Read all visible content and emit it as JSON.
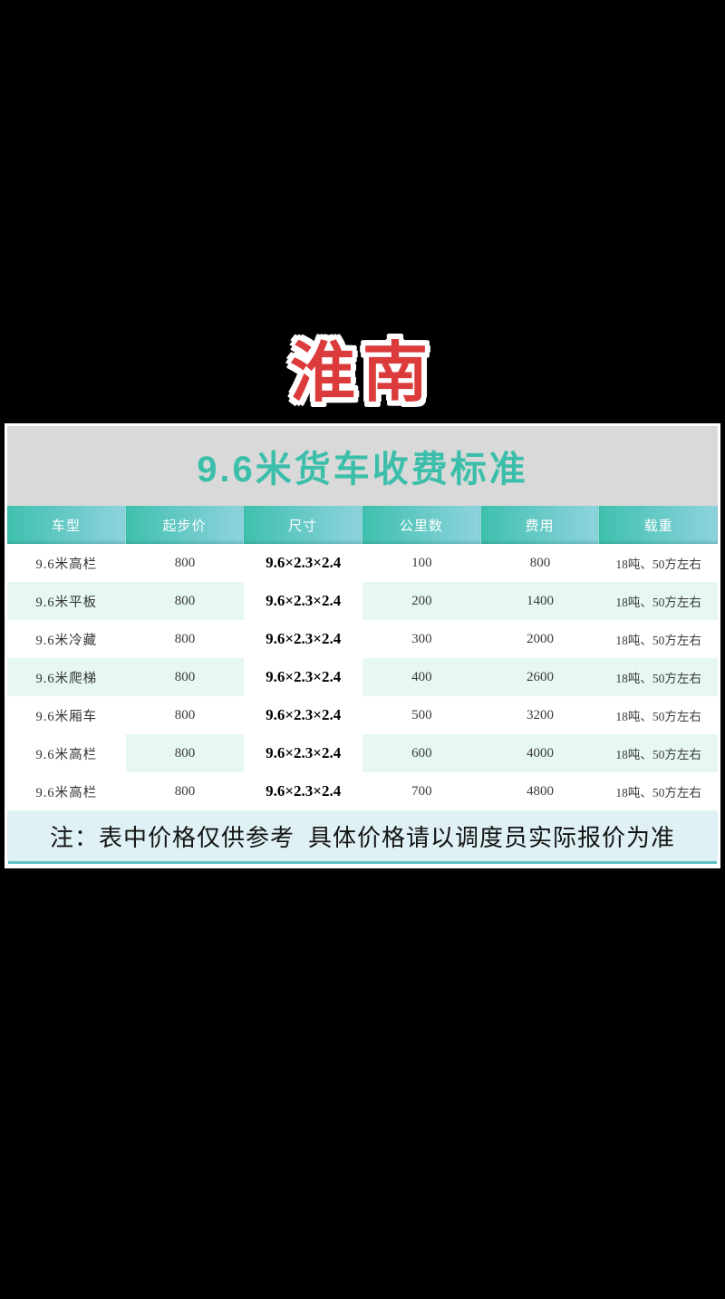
{
  "page_title": "淮南",
  "table": {
    "title": "9.6米货车收费标准",
    "columns": [
      "车型",
      "起步价",
      "尺寸",
      "公里数",
      "费用",
      "载重"
    ],
    "rows": [
      [
        "9.6米高栏",
        "800",
        "9.6×2.3×2.4",
        "100",
        "800",
        "18吨、50方左右"
      ],
      [
        "9.6米平板",
        "800",
        "9.6×2.3×2.4",
        "200",
        "1400",
        "18吨、50方左右"
      ],
      [
        "9.6米冷藏",
        "800",
        "9.6×2.3×2.4",
        "300",
        "2000",
        "18吨、50方左右"
      ],
      [
        "9.6米爬梯",
        "800",
        "9.6×2.3×2.4",
        "400",
        "2600",
        "18吨、50方左右"
      ],
      [
        "9.6米厢车",
        "800",
        "9.6×2.3×2.4",
        "500",
        "3200",
        "18吨、50方左右"
      ],
      [
        "9.6米高栏",
        "800",
        "9.6×2.3×2.4",
        "600",
        "4000",
        "18吨、50方左右"
      ],
      [
        "9.6米高栏",
        "800",
        "9.6×2.3×2.4",
        "700",
        "4800",
        "18吨、50方左右"
      ]
    ],
    "note": "注：表中价格仅供参考  具体价格请以调度员实际报价为准"
  },
  "colors": {
    "title_red": "#DC3B3C",
    "accent_teal": "#3CBFAA",
    "panel_gray": "#D9D9D9",
    "header_gradient_start": "#3FC0AE",
    "header_gradient_end": "#8ED3DE",
    "row_tint": "#E6F7F4",
    "note_bg": "#DFF1F5",
    "bottom_line": "#5FC3C3"
  }
}
